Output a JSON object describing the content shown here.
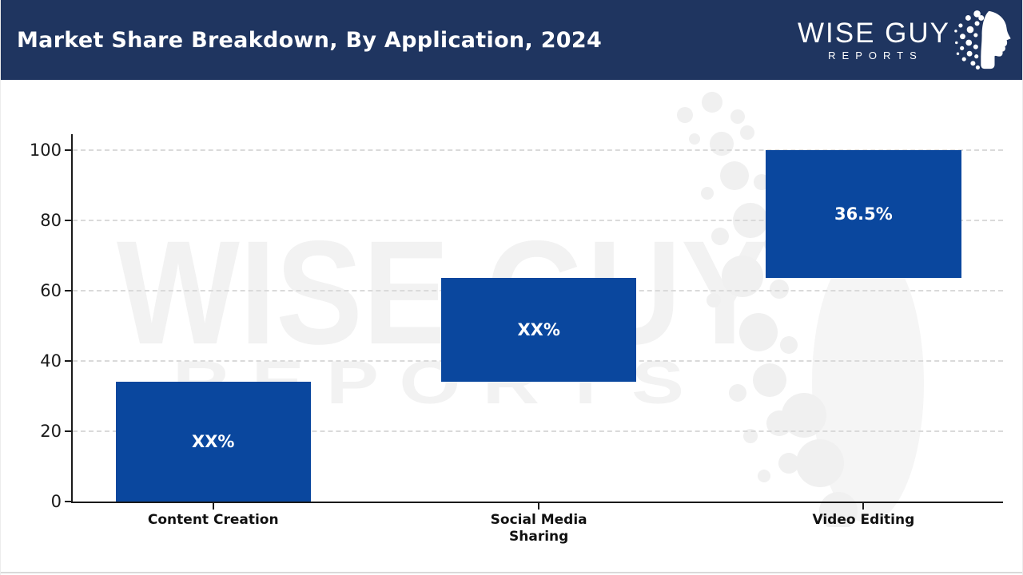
{
  "header": {
    "title": "Market Share Breakdown, By Application, 2024",
    "logo": {
      "name": "WISE GUY",
      "sub": "REPORTS"
    }
  },
  "watermark": {
    "line1": "WISE GUY",
    "line2": "R E P O R T S"
  },
  "chart_data": {
    "type": "bar",
    "subtype": "floating-segment-breakdown",
    "title": "Market Share Breakdown, By Application, 2024",
    "categories": [
      "Content Creation",
      "Social Media Sharing",
      "Video Editing"
    ],
    "category_lines": [
      [
        "Content Creation"
      ],
      [
        "Social Media",
        "Sharing"
      ],
      [
        "Video Editing"
      ]
    ],
    "bars": [
      {
        "category": "Content Creation",
        "start": 0,
        "end": 34,
        "span_pct": 34,
        "label": "XX%"
      },
      {
        "category": "Social Media Sharing",
        "start": 34,
        "end": 63.5,
        "span_pct": 29.5,
        "label": "XX%"
      },
      {
        "category": "Video Editing",
        "start": 63.5,
        "end": 100,
        "span_pct": 36.5,
        "label": "36.5%"
      }
    ],
    "yticks": [
      0,
      20,
      40,
      60,
      80,
      100
    ],
    "ylim": [
      0,
      104.5
    ],
    "xlabel": "",
    "ylabel": "",
    "grid": "horizontal-dashed",
    "legend": "none",
    "bar_color": "#0a479e",
    "bar_label_color": "#ffffff",
    "centers_pct": [
      15.1,
      50.1,
      85.0
    ],
    "bar_width_pct": 21
  },
  "colors": {
    "header_bg": "#1f3560",
    "bar_blue": "#0a479e",
    "gridline": "#dadada",
    "axis": "#1a1a1a",
    "watermark": "#f2f2f2"
  }
}
